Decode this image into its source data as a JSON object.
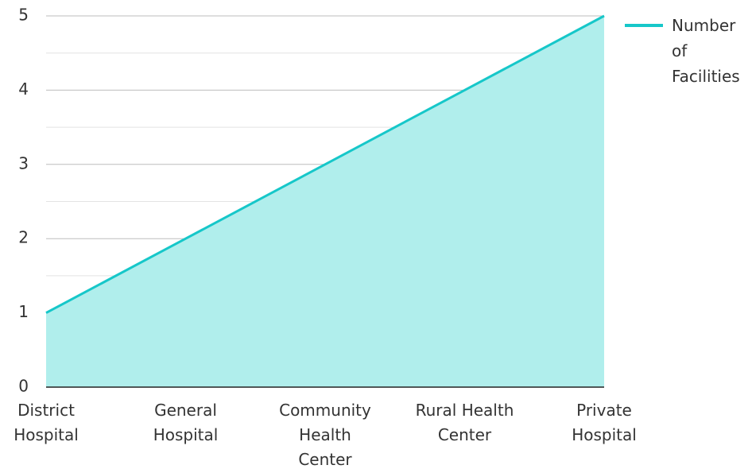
{
  "chart_data": {
    "type": "area",
    "categories": [
      "District Hospital",
      "General Hospital",
      "Community Health Center",
      "Rural Health Center",
      "Private Hospital"
    ],
    "category_lines": [
      [
        "District",
        "Hospital"
      ],
      [
        "General",
        "Hospital"
      ],
      [
        "Community",
        "Health",
        "Center"
      ],
      [
        "Rural Health",
        "Center"
      ],
      [
        "Private",
        "Hospital"
      ]
    ],
    "series": [
      {
        "name": "Number of Facilities",
        "values": [
          1,
          2,
          3,
          4,
          5
        ]
      }
    ],
    "legend_lines": [
      "Number",
      "of",
      "Facilities"
    ],
    "ylim": [
      0,
      5
    ],
    "yticks": [
      "0",
      "1",
      "2",
      "3",
      "4",
      "5"
    ],
    "xlabel": "",
    "ylabel": "",
    "title": "",
    "grid": true,
    "legend": "top-right",
    "colors": {
      "line": "#16c7c9",
      "fill": "#b0eeec",
      "grid_major": "#bdbdbd",
      "grid_minor": "#e3e3e3",
      "axis": "#222222"
    }
  }
}
